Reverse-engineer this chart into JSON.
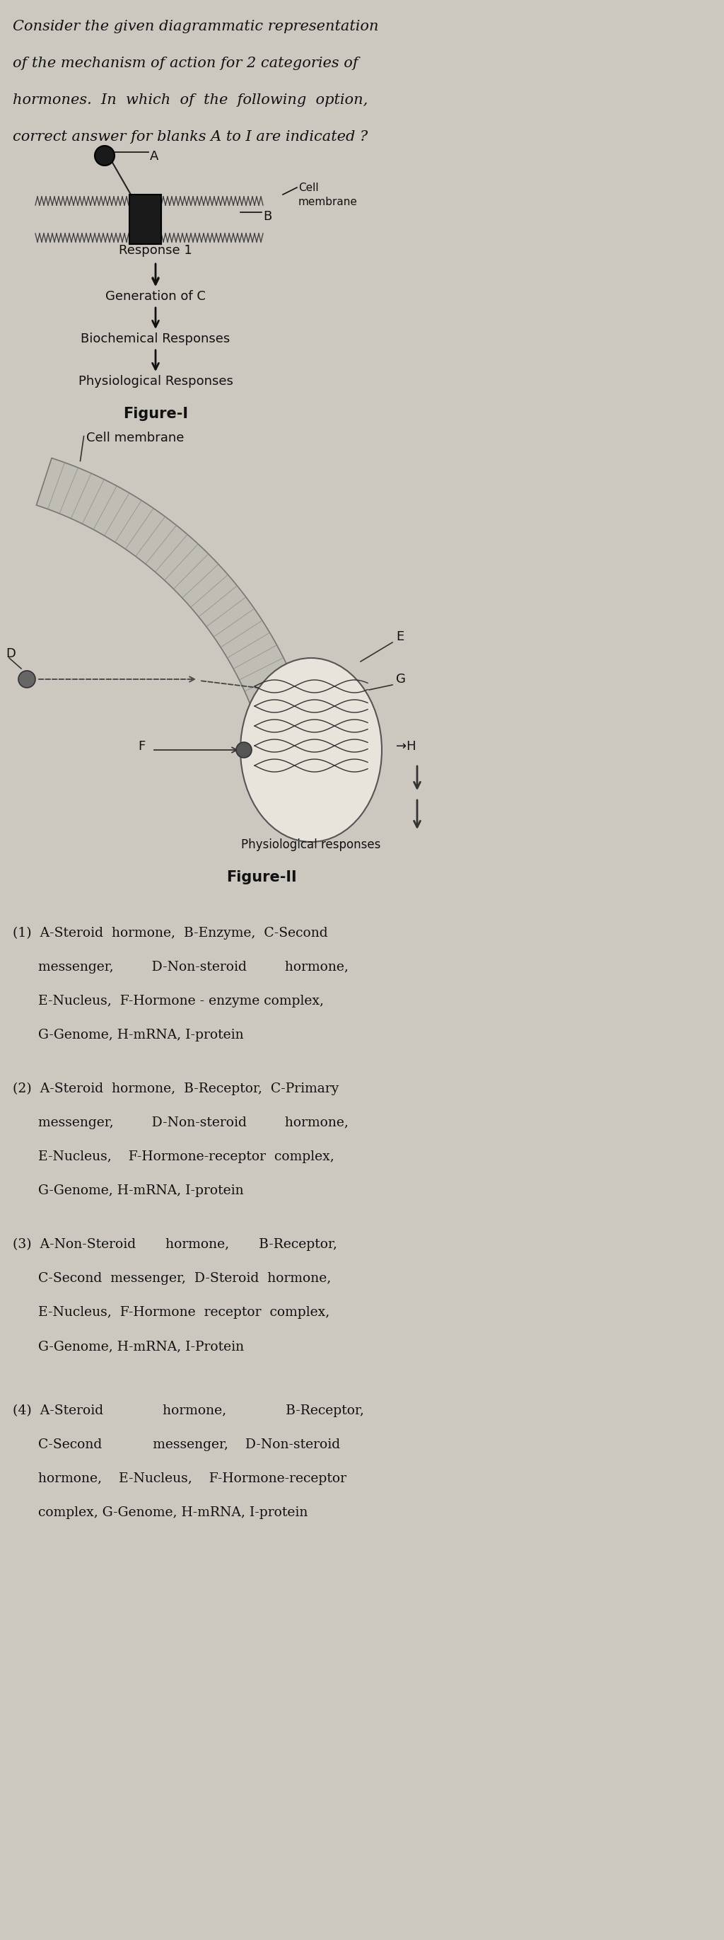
{
  "bg_color": "#ccc8c0",
  "title_line1": "Consider the given diagrammatic representation",
  "title_line2": "of the mechanism of action for 2 categories of",
  "title_line3": "hormones.  In  which  of  the  following  option,",
  "title_line4": "correct answer for blanks A to I are indicated ?",
  "fig1_label": "Figure-I",
  "fig2_label": "Figure-II",
  "flow_items": [
    "Response 1",
    "Generation of C",
    "Biochemical Responses",
    "Physiological Responses"
  ],
  "opt1_lines": [
    "(1)  A-Steroid  hormone,  B-Enzyme,  C-Second",
    "      messenger,         D-Non-steroid         hormone,",
    "      E-Nucleus,  F-Hormone - enzyme complex,",
    "      G-Genome, H-mRNA, I-protein"
  ],
  "opt2_lines": [
    "(2)  A-Steroid  hormone,  B-Receptor,  C-Primary",
    "      messenger,         D-Non-steroid         hormone,",
    "      E-Nucleus,    F-Hormone-receptor  complex,",
    "      G-Genome, H-mRNA, I-protein"
  ],
  "opt3_lines": [
    "(3)  A-Non-Steroid       hormone,       B-Receptor,",
    "      C-Second  messenger,  D-Steroid  hormone,",
    "      E-Nucleus,  F-Hormone  receptor  complex,",
    "      G-Genome, H-mRNA, I-Protein"
  ],
  "opt4_lines": [
    "(4)  A-Steroid              hormone,              B-Receptor,",
    "      C-Second            messenger,    D-Non-steroid",
    "      hormone,    E-Nucleus,    F-Hormone-receptor",
    "      complex, G-Genome, H-mRNA, I-protein"
  ]
}
